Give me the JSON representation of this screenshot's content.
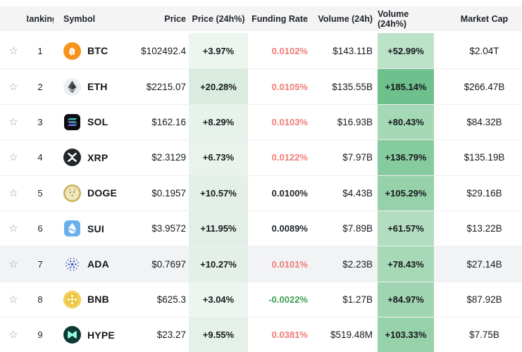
{
  "colors": {
    "header_bg": "#f4f4f5",
    "row_highlight_bg": "#f2f3f5",
    "row_border": "#efefef",
    "text_primary": "#17191d",
    "funding_red": "#ef7b76",
    "funding_green": "#3e9e4f",
    "funding_neutral": "#1e2329",
    "star": "#9aa0a6"
  },
  "icons": {
    "star_glyph": "☆"
  },
  "table": {
    "columns": {
      "favorite": "",
      "ranking": "Ranking",
      "symbol": "Symbol",
      "price": "Price",
      "price_change_24h": "Price (24h%)",
      "funding_rate": "Funding Rate",
      "volume_24h": "Volume (24h)",
      "volume_change_24h": "Volume (24h%)",
      "market_cap": "Market Cap"
    },
    "rows": [
      {
        "ranking": "1",
        "symbol": "BTC",
        "icon": "btc-coin-icon",
        "price": "$102492.4",
        "price_change_24h": "+3.97%",
        "price_change_bg": "#ecf5ee",
        "funding_rate": "0.0102%",
        "funding_sentiment": "red",
        "volume_24h": "$143.11B",
        "volume_change_24h": "+52.99%",
        "volume_change_bg": "#bce2c8",
        "market_cap": "$2.04T",
        "highlighted": false
      },
      {
        "ranking": "2",
        "symbol": "ETH",
        "icon": "eth-coin-icon",
        "price": "$2215.07",
        "price_change_24h": "+20.28%",
        "price_change_bg": "#d9ecdf",
        "funding_rate": "0.0105%",
        "funding_sentiment": "red",
        "volume_24h": "$135.55B",
        "volume_change_24h": "+185.14%",
        "volume_change_bg": "#6ec08d",
        "market_cap": "$266.47B",
        "highlighted": false
      },
      {
        "ranking": "3",
        "symbol": "SOL",
        "icon": "sol-coin-icon",
        "price": "$162.16",
        "price_change_24h": "+8.29%",
        "price_change_bg": "#e7f2ea",
        "funding_rate": "0.0103%",
        "funding_sentiment": "red",
        "volume_24h": "$16.93B",
        "volume_change_24h": "+80.43%",
        "volume_change_bg": "#a5d8b5",
        "market_cap": "$84.32B",
        "highlighted": false
      },
      {
        "ranking": "4",
        "symbol": "XRP",
        "icon": "xrp-coin-icon",
        "price": "$2.3129",
        "price_change_24h": "+6.73%",
        "price_change_bg": "#e9f3eb",
        "funding_rate": "0.0122%",
        "funding_sentiment": "red",
        "volume_24h": "$7.97B",
        "volume_change_24h": "+136.79%",
        "volume_change_bg": "#85cb9d",
        "market_cap": "$135.19B",
        "highlighted": false
      },
      {
        "ranking": "5",
        "symbol": "DOGE",
        "icon": "doge-coin-icon",
        "price": "$0.1957",
        "price_change_24h": "+10.57%",
        "price_change_bg": "#e4f0e7",
        "funding_rate": "0.0100%",
        "funding_sentiment": "neutral",
        "volume_24h": "$4.43B",
        "volume_change_24h": "+105.29%",
        "volume_change_bg": "#96d1aa",
        "market_cap": "$29.16B",
        "highlighted": false
      },
      {
        "ranking": "6",
        "symbol": "SUI",
        "icon": "sui-coin-icon",
        "price": "$3.9572",
        "price_change_24h": "+11.95%",
        "price_change_bg": "#e2efe6",
        "funding_rate": "0.0089%",
        "funding_sentiment": "neutral",
        "volume_24h": "$7.89B",
        "volume_change_24h": "+61.57%",
        "volume_change_bg": "#b3ddc0",
        "market_cap": "$13.22B",
        "highlighted": false
      },
      {
        "ranking": "7",
        "symbol": "ADA",
        "icon": "ada-coin-icon",
        "price": "$0.7697",
        "price_change_24h": "+10.27%",
        "price_change_bg": "#e4f0e7",
        "funding_rate": "0.0101%",
        "funding_sentiment": "red",
        "volume_24h": "$2.23B",
        "volume_change_24h": "+78.43%",
        "volume_change_bg": "#a7d9b6",
        "market_cap": "$27.14B",
        "highlighted": true
      },
      {
        "ranking": "8",
        "symbol": "BNB",
        "icon": "bnb-coin-icon",
        "price": "$625.3",
        "price_change_24h": "+3.04%",
        "price_change_bg": "#edf5ef",
        "funding_rate": "-0.0022%",
        "funding_sentiment": "green",
        "volume_24h": "$1.27B",
        "volume_change_24h": "+84.97%",
        "volume_change_bg": "#a0d5b1",
        "market_cap": "$87.92B",
        "highlighted": false
      },
      {
        "ranking": "9",
        "symbol": "HYPE",
        "icon": "hype-coin-icon",
        "price": "$23.27",
        "price_change_24h": "+9.55%",
        "price_change_bg": "#e5f1e8",
        "funding_rate": "0.0381%",
        "funding_sentiment": "red",
        "volume_24h": "$519.48M",
        "volume_change_24h": "+103.33%",
        "volume_change_bg": "#98d2ab",
        "market_cap": "$7.75B",
        "highlighted": false
      }
    ]
  }
}
